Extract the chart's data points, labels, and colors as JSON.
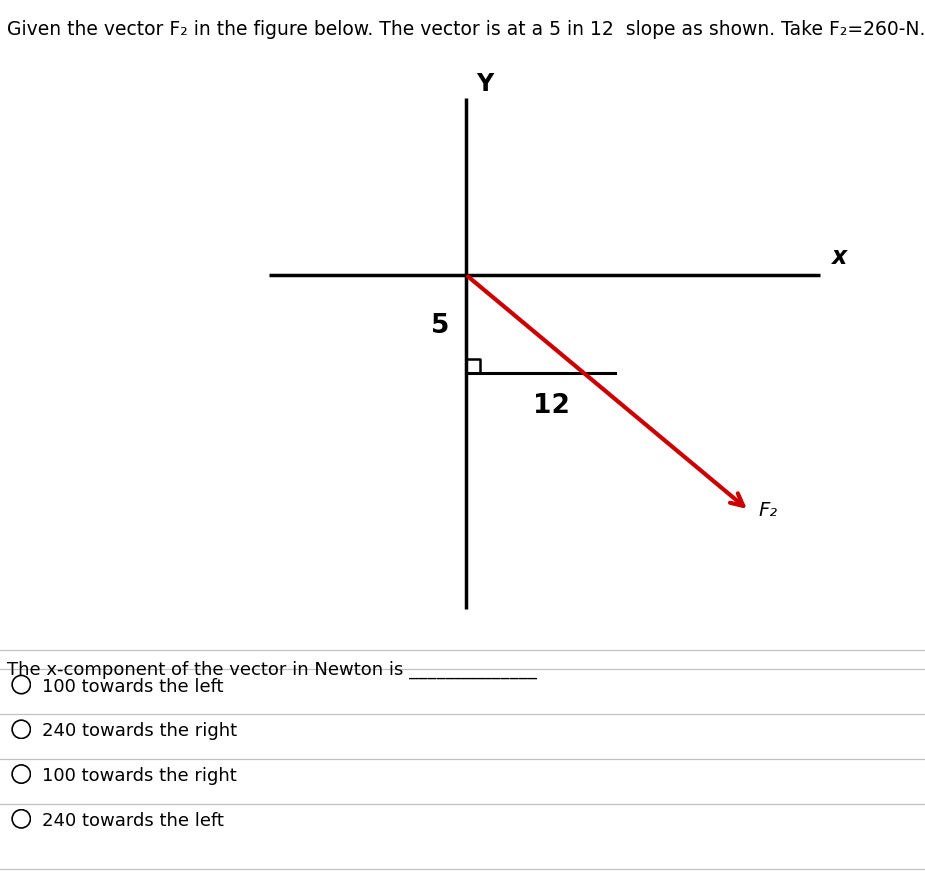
{
  "title_text": "Given the vector F₂ in the figure below. The vector is at a 5 in 12  slope as shown. Take F₂=260-N.",
  "title_fontsize": 13.5,
  "question_text": "The x-component of the vector in Newton is ______________",
  "question_fontsize": 13,
  "options": [
    "100 towards the left",
    "240 towards the right",
    "100 towards the right",
    "240 towards the left"
  ],
  "option_fontsize": 13,
  "bg_color": "#ffffff",
  "axis_color": "#000000",
  "vector_color": "#cc0000",
  "label_color": "#000000",
  "x_axis_left": -5.0,
  "x_axis_right": 9.0,
  "y_axis_top": 4.5,
  "y_axis_bottom": -8.5,
  "vec_tip_x": 7.2,
  "vec_tip_y": -6.0,
  "tri_top_x": 0.0,
  "tri_top_y": -2.5,
  "tri_bot_x": 4.0,
  "tri_bot_y": -2.5,
  "tri_corner_x": 4.0,
  "tri_corner_y": -2.5,
  "slope_label_5": "5",
  "slope_label_12": "12",
  "x_label": "x",
  "y_label": "Y",
  "f2_label": "F₂"
}
